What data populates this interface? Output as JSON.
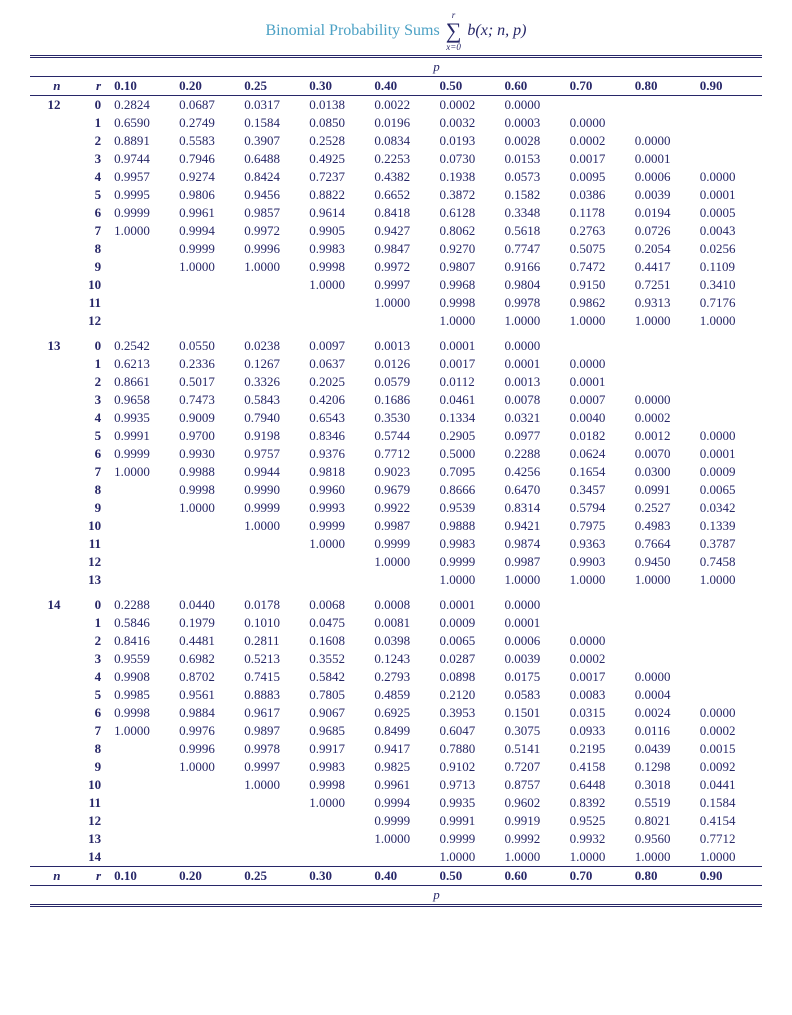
{
  "title_prefix": "Binomial Probability Sums",
  "title_formula_b": "b",
  "title_formula_args": "(x; n, p)",
  "sum_top": "r",
  "sum_bot": "x=0",
  "header_n": "n",
  "header_r": "r",
  "header_p": "p",
  "p_values": [
    "0.10",
    "0.20",
    "0.25",
    "0.30",
    "0.40",
    "0.50",
    "0.60",
    "0.70",
    "0.80",
    "0.90"
  ],
  "groups": [
    {
      "n": 12,
      "rows": [
        [
          "0.2824",
          "0.0687",
          "0.0317",
          "0.0138",
          "0.0022",
          "0.0002",
          "0.0000",
          "",
          "",
          ""
        ],
        [
          "0.6590",
          "0.2749",
          "0.1584",
          "0.0850",
          "0.0196",
          "0.0032",
          "0.0003",
          "0.0000",
          "",
          ""
        ],
        [
          "0.8891",
          "0.5583",
          "0.3907",
          "0.2528",
          "0.0834",
          "0.0193",
          "0.0028",
          "0.0002",
          "0.0000",
          ""
        ],
        [
          "0.9744",
          "0.7946",
          "0.6488",
          "0.4925",
          "0.2253",
          "0.0730",
          "0.0153",
          "0.0017",
          "0.0001",
          ""
        ],
        [
          "0.9957",
          "0.9274",
          "0.8424",
          "0.7237",
          "0.4382",
          "0.1938",
          "0.0573",
          "0.0095",
          "0.0006",
          "0.0000"
        ],
        [
          "0.9995",
          "0.9806",
          "0.9456",
          "0.8822",
          "0.6652",
          "0.3872",
          "0.1582",
          "0.0386",
          "0.0039",
          "0.0001"
        ],
        [
          "0.9999",
          "0.9961",
          "0.9857",
          "0.9614",
          "0.8418",
          "0.6128",
          "0.3348",
          "0.1178",
          "0.0194",
          "0.0005"
        ],
        [
          "1.0000",
          "0.9994",
          "0.9972",
          "0.9905",
          "0.9427",
          "0.8062",
          "0.5618",
          "0.2763",
          "0.0726",
          "0.0043"
        ],
        [
          "",
          "0.9999",
          "0.9996",
          "0.9983",
          "0.9847",
          "0.9270",
          "0.7747",
          "0.5075",
          "0.2054",
          "0.0256"
        ],
        [
          "",
          "1.0000",
          "1.0000",
          "0.9998",
          "0.9972",
          "0.9807",
          "0.9166",
          "0.7472",
          "0.4417",
          "0.1109"
        ],
        [
          "",
          "",
          "",
          "1.0000",
          "0.9997",
          "0.9968",
          "0.9804",
          "0.9150",
          "0.7251",
          "0.3410"
        ],
        [
          "",
          "",
          "",
          "",
          "1.0000",
          "0.9998",
          "0.9978",
          "0.9862",
          "0.9313",
          "0.7176"
        ],
        [
          "",
          "",
          "",
          "",
          "",
          "1.0000",
          "1.0000",
          "1.0000",
          "1.0000",
          "1.0000"
        ]
      ]
    },
    {
      "n": 13,
      "rows": [
        [
          "0.2542",
          "0.0550",
          "0.0238",
          "0.0097",
          "0.0013",
          "0.0001",
          "0.0000",
          "",
          "",
          ""
        ],
        [
          "0.6213",
          "0.2336",
          "0.1267",
          "0.0637",
          "0.0126",
          "0.0017",
          "0.0001",
          "0.0000",
          "",
          ""
        ],
        [
          "0.8661",
          "0.5017",
          "0.3326",
          "0.2025",
          "0.0579",
          "0.0112",
          "0.0013",
          "0.0001",
          "",
          ""
        ],
        [
          "0.9658",
          "0.7473",
          "0.5843",
          "0.4206",
          "0.1686",
          "0.0461",
          "0.0078",
          "0.0007",
          "0.0000",
          ""
        ],
        [
          "0.9935",
          "0.9009",
          "0.7940",
          "0.6543",
          "0.3530",
          "0.1334",
          "0.0321",
          "0.0040",
          "0.0002",
          ""
        ],
        [
          "0.9991",
          "0.9700",
          "0.9198",
          "0.8346",
          "0.5744",
          "0.2905",
          "0.0977",
          "0.0182",
          "0.0012",
          "0.0000"
        ],
        [
          "0.9999",
          "0.9930",
          "0.9757",
          "0.9376",
          "0.7712",
          "0.5000",
          "0.2288",
          "0.0624",
          "0.0070",
          "0.0001"
        ],
        [
          "1.0000",
          "0.9988",
          "0.9944",
          "0.9818",
          "0.9023",
          "0.7095",
          "0.4256",
          "0.1654",
          "0.0300",
          "0.0009"
        ],
        [
          "",
          "0.9998",
          "0.9990",
          "0.9960",
          "0.9679",
          "0.8666",
          "0.6470",
          "0.3457",
          "0.0991",
          "0.0065"
        ],
        [
          "",
          "1.0000",
          "0.9999",
          "0.9993",
          "0.9922",
          "0.9539",
          "0.8314",
          "0.5794",
          "0.2527",
          "0.0342"
        ],
        [
          "",
          "",
          "1.0000",
          "0.9999",
          "0.9987",
          "0.9888",
          "0.9421",
          "0.7975",
          "0.4983",
          "0.1339"
        ],
        [
          "",
          "",
          "",
          "1.0000",
          "0.9999",
          "0.9983",
          "0.9874",
          "0.9363",
          "0.7664",
          "0.3787"
        ],
        [
          "",
          "",
          "",
          "",
          "1.0000",
          "0.9999",
          "0.9987",
          "0.9903",
          "0.9450",
          "0.7458"
        ],
        [
          "",
          "",
          "",
          "",
          "",
          "1.0000",
          "1.0000",
          "1.0000",
          "1.0000",
          "1.0000"
        ]
      ]
    },
    {
      "n": 14,
      "rows": [
        [
          "0.2288",
          "0.0440",
          "0.0178",
          "0.0068",
          "0.0008",
          "0.0001",
          "0.0000",
          "",
          "",
          ""
        ],
        [
          "0.5846",
          "0.1979",
          "0.1010",
          "0.0475",
          "0.0081",
          "0.0009",
          "0.0001",
          "",
          "",
          ""
        ],
        [
          "0.8416",
          "0.4481",
          "0.2811",
          "0.1608",
          "0.0398",
          "0.0065",
          "0.0006",
          "0.0000",
          "",
          ""
        ],
        [
          "0.9559",
          "0.6982",
          "0.5213",
          "0.3552",
          "0.1243",
          "0.0287",
          "0.0039",
          "0.0002",
          "",
          ""
        ],
        [
          "0.9908",
          "0.8702",
          "0.7415",
          "0.5842",
          "0.2793",
          "0.0898",
          "0.0175",
          "0.0017",
          "0.0000",
          ""
        ],
        [
          "0.9985",
          "0.9561",
          "0.8883",
          "0.7805",
          "0.4859",
          "0.2120",
          "0.0583",
          "0.0083",
          "0.0004",
          ""
        ],
        [
          "0.9998",
          "0.9884",
          "0.9617",
          "0.9067",
          "0.6925",
          "0.3953",
          "0.1501",
          "0.0315",
          "0.0024",
          "0.0000"
        ],
        [
          "1.0000",
          "0.9976",
          "0.9897",
          "0.9685",
          "0.8499",
          "0.6047",
          "0.3075",
          "0.0933",
          "0.0116",
          "0.0002"
        ],
        [
          "",
          "0.9996",
          "0.9978",
          "0.9917",
          "0.9417",
          "0.7880",
          "0.5141",
          "0.2195",
          "0.0439",
          "0.0015"
        ],
        [
          "",
          "1.0000",
          "0.9997",
          "0.9983",
          "0.9825",
          "0.9102",
          "0.7207",
          "0.4158",
          "0.1298",
          "0.0092"
        ],
        [
          "",
          "",
          "1.0000",
          "0.9998",
          "0.9961",
          "0.9713",
          "0.8757",
          "0.6448",
          "0.3018",
          "0.0441"
        ],
        [
          "",
          "",
          "",
          "1.0000",
          "0.9994",
          "0.9935",
          "0.9602",
          "0.8392",
          "0.5519",
          "0.1584"
        ],
        [
          "",
          "",
          "",
          "",
          "0.9999",
          "0.9991",
          "0.9919",
          "0.9525",
          "0.8021",
          "0.4154"
        ],
        [
          "",
          "",
          "",
          "",
          "1.0000",
          "0.9999",
          "0.9992",
          "0.9932",
          "0.9560",
          "0.7712"
        ],
        [
          "",
          "",
          "",
          "",
          "",
          "1.0000",
          "1.0000",
          "1.0000",
          "1.0000",
          "1.0000"
        ]
      ]
    }
  ]
}
